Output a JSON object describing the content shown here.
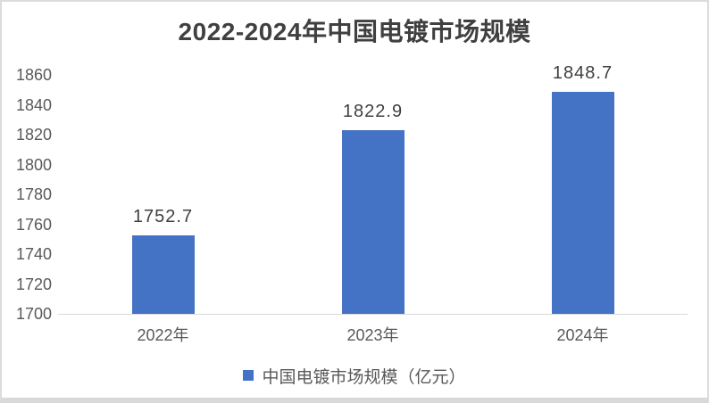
{
  "frame": {
    "background": "#ffffff",
    "border_color": "#d9d9d9"
  },
  "chart_data": {
    "type": "bar",
    "title": "2022-2024年中国电镀市场规模",
    "xlabel": "",
    "ylabel": "",
    "categories": [
      "2022年",
      "2023年",
      "2024年"
    ],
    "series": [
      {
        "name": "中国电镀市场规模（亿元）",
        "values": [
          1752.7,
          1822.9,
          1848.7
        ]
      }
    ],
    "data_labels": [
      "1752.7",
      "1822.9",
      "1848.7"
    ],
    "ylim": [
      1700,
      1860
    ],
    "ytick_step": 20,
    "yticks": [
      1700,
      1720,
      1740,
      1760,
      1780,
      1800,
      1820,
      1840,
      1860
    ],
    "grid": false,
    "legend_position": "bottom",
    "colors": {
      "bar": "#4472C4",
      "axis_line": "#d9d9d9",
      "tick_label": "#595959",
      "category_label": "#595959",
      "data_label": "#3f3f3f",
      "title": "#404040",
      "legend_label": "#595959"
    }
  },
  "legend": {
    "label": "中国电镀市场规模（亿元）"
  }
}
